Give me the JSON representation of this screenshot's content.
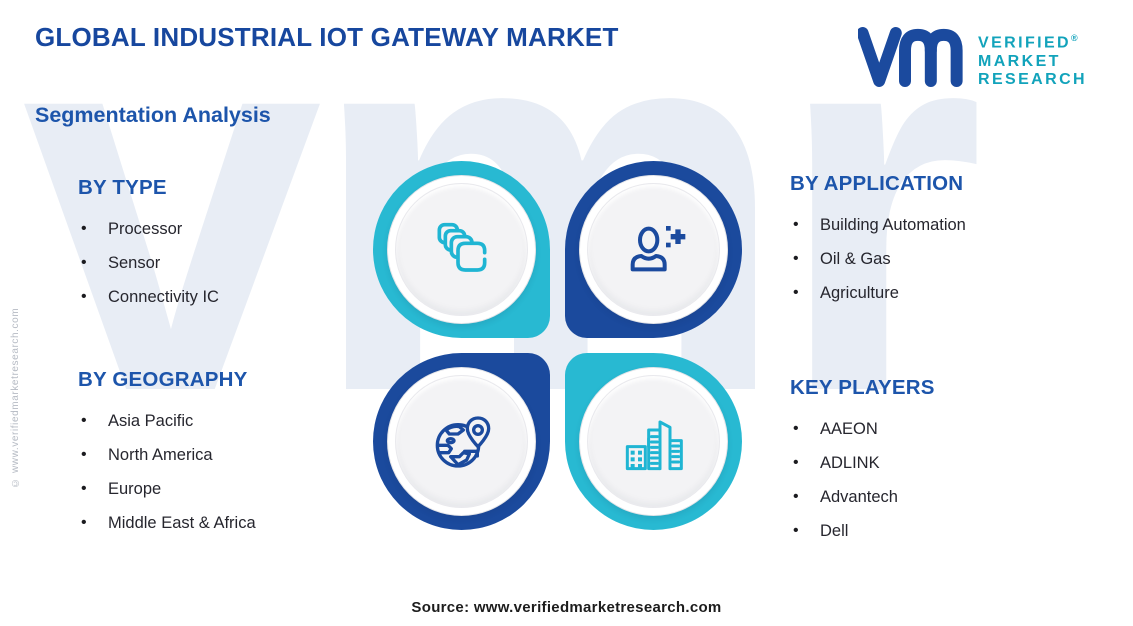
{
  "header": {
    "title": "GLOBAL INDUSTRIAL IOT GATEWAY MARKET",
    "subtitle": "Segmentation Analysis"
  },
  "logo": {
    "mark": "vmr-monogram",
    "line1": "VERIFIED",
    "line2": "MARKET",
    "line3": "RESEARCH",
    "registered": "®"
  },
  "sections": {
    "by_type": {
      "heading": "BY TYPE",
      "items": [
        "Processor",
        "Sensor",
        "Connectivity IC"
      ]
    },
    "by_application": {
      "heading": "BY APPLICATION",
      "items": [
        "Building Automation",
        "Oil & Gas",
        "Agriculture"
      ]
    },
    "by_geography": {
      "heading": "BY GEOGRAPHY",
      "items": [
        "Asia Pacific",
        "North America",
        "Europe",
        "Middle East & Africa"
      ]
    },
    "key_players": {
      "heading": "KEY PLAYERS",
      "items": [
        "AAEON",
        "ADLINK",
        "Advantech",
        "Dell"
      ]
    }
  },
  "center": {
    "icons": [
      "stacked-chips-icon",
      "person-plus-icon",
      "globe-location-icon",
      "buildings-icon"
    ]
  },
  "watermark": {
    "text": "vmr",
    "side_text": "© www.verifiedmarketresearch.com"
  },
  "footer": {
    "source": "Source: www.verifiedmarketresearch.com"
  },
  "colors": {
    "title_navy": "#17479e",
    "heading_blue": "#1d55ab",
    "teal": "#28b9d2",
    "dark_blue": "#1b4a9d",
    "logo_teal": "#12a3bb",
    "body_text": "#26262e",
    "watermark_gray": "#e8edf5"
  }
}
